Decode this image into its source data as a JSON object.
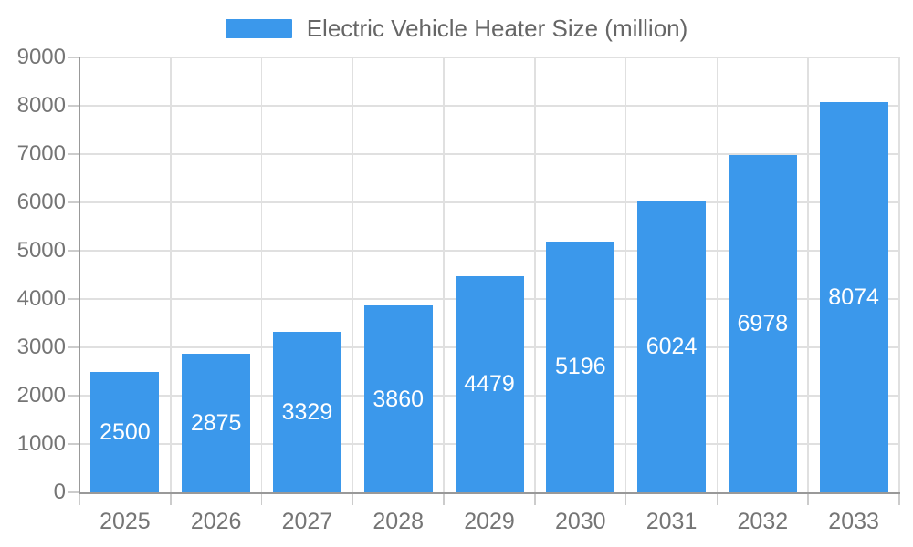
{
  "legend": {
    "label": "Electric Vehicle Heater Size (million)"
  },
  "chart_data": {
    "type": "bar",
    "title": "Electric Vehicle Heater Size (million)",
    "legend_entries": [
      "Electric Vehicle Heater Size (million)"
    ],
    "legend_position": "top-center",
    "categories": [
      "2025",
      "2026",
      "2027",
      "2028",
      "2029",
      "2030",
      "2031",
      "2032",
      "2033"
    ],
    "series": [
      {
        "name": "Electric Vehicle Heater Size (million)",
        "values": [
          2500,
          2875,
          3329,
          3860,
          4479,
          5196,
          6024,
          6978,
          8074
        ]
      }
    ],
    "value_labels_inside_bars": true,
    "xlabel": "",
    "ylabel": "",
    "ylim": [
      0,
      9000
    ],
    "ytick_step": 1000,
    "yticks": [
      0,
      1000,
      2000,
      3000,
      4000,
      5000,
      6000,
      7000,
      8000,
      9000
    ],
    "grid": true
  },
  "colors": {
    "bar": "#3b98eb",
    "bar_value_text": "#ffffff",
    "grid_line": "#e0e0e0",
    "axis_line": "#999999",
    "tick": "#cccccc",
    "axis_label_text": "#757575",
    "legend_text": "#666666",
    "background": "#ffffff"
  }
}
